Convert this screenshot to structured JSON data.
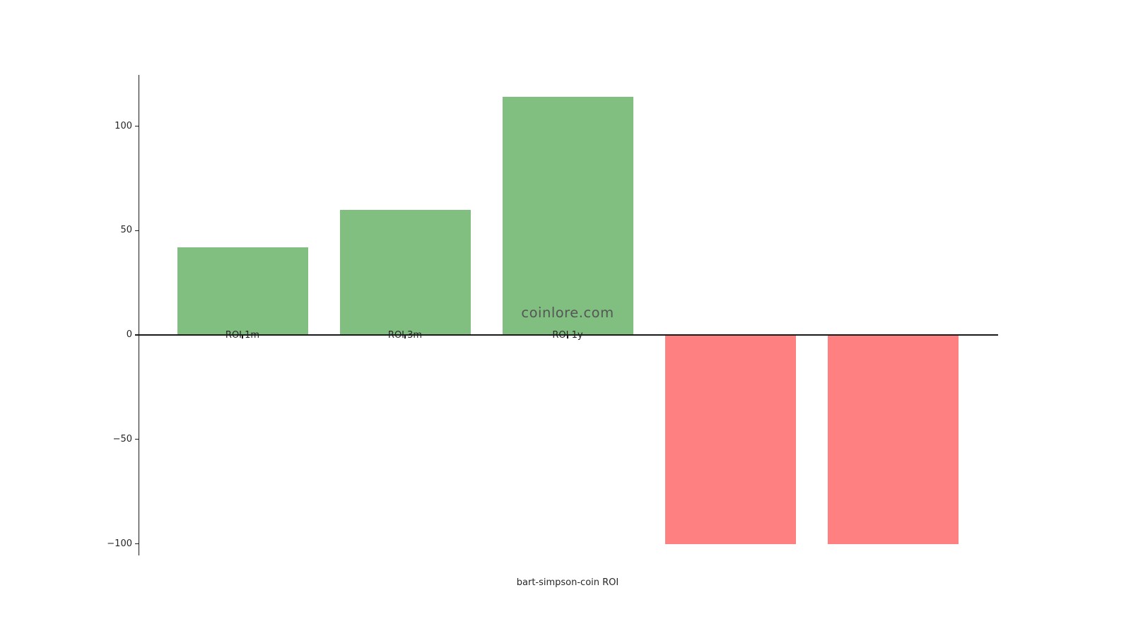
{
  "chart_data": {
    "type": "bar",
    "categories": [
      "ROI 1m",
      "ROI 3m",
      "ROI 1y",
      "",
      ""
    ],
    "values": [
      42,
      60,
      114,
      -100,
      -100
    ],
    "title": "bart-simpson-coin ROI",
    "xlabel": "",
    "ylabel": "",
    "ylim": [
      -105,
      125
    ],
    "yticks": [
      100,
      50,
      0,
      -50,
      -100
    ],
    "ytick_labels": [
      "100",
      "50",
      "0",
      "−50",
      "−100"
    ],
    "grid": false,
    "legend": null,
    "positive_color": "#80BF80",
    "negative_color": "#FF8080"
  },
  "watermark": {
    "text": "coinlore.com",
    "color": "#555555"
  },
  "axis": {
    "color": "#1a1a1a",
    "label_color": "#262626"
  }
}
